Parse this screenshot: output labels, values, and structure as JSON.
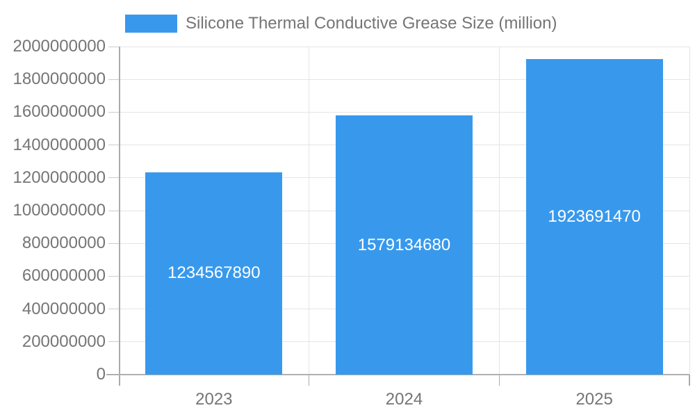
{
  "chart_data": {
    "type": "bar",
    "legend_label": "Silicone Thermal Conductive Grease Size (million)",
    "legend_position": "top",
    "categories": [
      "2023",
      "2024",
      "2025"
    ],
    "values": [
      1234567890,
      1579134680,
      1923691470
    ],
    "value_labels": [
      "1234567890",
      "1579134680",
      "1923691470"
    ],
    "yticks": [
      "0",
      "200000000",
      "400000000",
      "600000000",
      "800000000",
      "1000000000",
      "1200000000",
      "1400000000",
      "1600000000",
      "1800000000",
      "2000000000"
    ],
    "ylim": [
      0,
      2000000000
    ],
    "ytick_step": 200000000,
    "grid": true,
    "colors": {
      "bar": "#3899ec",
      "axis": "#aaaaaa",
      "grid": "#e4e4e4",
      "tick": "#cccccc",
      "text": "#757575",
      "value_label": "#ffffff",
      "background": "#ffffff"
    }
  }
}
